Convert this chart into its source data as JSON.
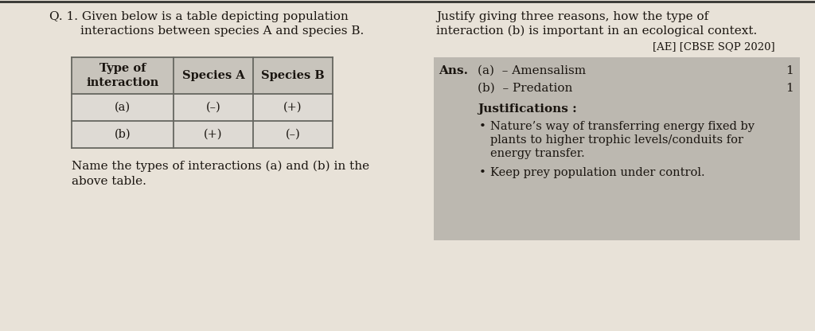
{
  "page_bg": "#e8e2d8",
  "question_left_line1": "Q. 1. Given below is a table depicting population",
  "question_left_line2": "        interactions between species A and species B.",
  "question_right_line1": "Justify giving three reasons, how the type of",
  "question_right_line2": "interaction (b) is important in an ecological context.",
  "cbse_tag": "[AE] [CBSE SQP 2020]",
  "table_headers": [
    "Type of\ninteraction",
    "Species A",
    "Species B"
  ],
  "table_row1": [
    "(a)",
    "(–)",
    "(+)"
  ],
  "table_row2": [
    "(b)",
    "(+)",
    "(–)"
  ],
  "sub_question_line1": "Name the types of interactions (a) and (b) in the",
  "sub_question_line2": "above table.",
  "ans_box_bg": "#bcb8b0",
  "ans_title": "Ans.",
  "ans_a": "(a)  – Amensalism",
  "ans_a_mark": "1",
  "ans_b": "(b)  – Predation",
  "ans_b_mark": "1",
  "ans_just": "Justifications :",
  "bullet1_line1": "Nature’s way of transferring energy fixed by",
  "bullet1_line2": "plants to higher trophic levels/conduits for",
  "bullet1_line3": "energy transfer.",
  "bullet2": "Keep prey population under control.",
  "text_color": "#1a1510",
  "table_header_bg": "#c8c4bc",
  "table_cell_bg": "#dedad4",
  "table_border": "#666660",
  "divider_color": "#555550"
}
